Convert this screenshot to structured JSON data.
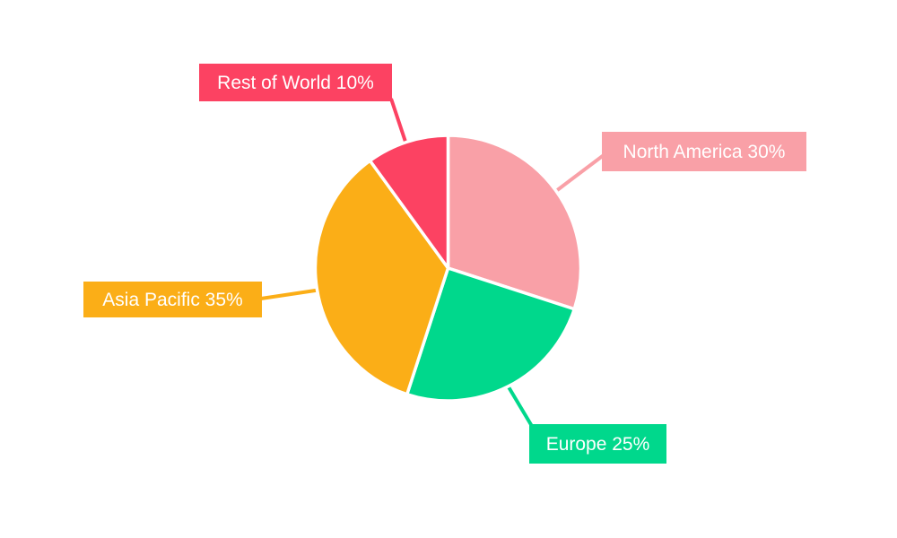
{
  "page": {
    "background_color": "#FFFFFF"
  },
  "chart_data": {
    "type": "pie",
    "title": "",
    "categories": [
      "North America",
      "Europe",
      "Asia Pacific",
      "Rest of World"
    ],
    "values": [
      30,
      25,
      35,
      10
    ],
    "unit": "%",
    "direction": "clockwise",
    "start_angle": "12-o-clock",
    "legend_position": "callout-labels",
    "separator_color": "#FFFFFF",
    "slices": [
      {
        "label": "North America",
        "value": 30,
        "display": "North America 30%",
        "color": "#F9A0A7"
      },
      {
        "label": "Europe",
        "value": 25,
        "display": "Europe 25%",
        "color": "#00D88C"
      },
      {
        "label": "Asia Pacific",
        "value": 35,
        "display": "Asia Pacific 35%",
        "color": "#FBAE17"
      },
      {
        "label": "Rest of World",
        "value": 10,
        "display": "Rest of World 10%",
        "color": "#FC4262"
      }
    ]
  }
}
